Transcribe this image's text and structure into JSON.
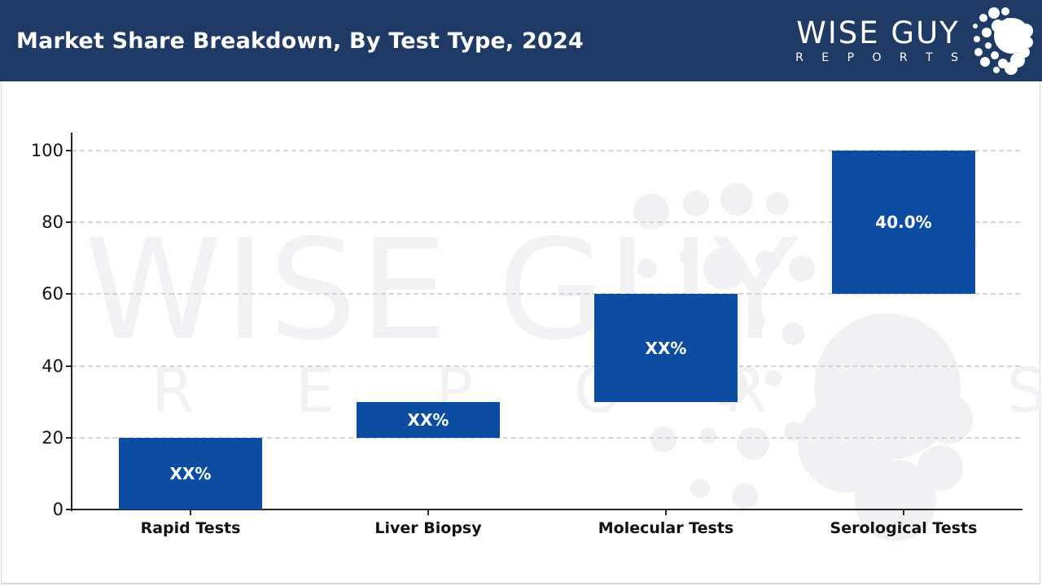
{
  "header": {
    "title": "Market Share Breakdown, By Test Type, 2024",
    "bg_color": "#203A66",
    "logo": {
      "line1": "WISE GUY",
      "line2": "R E P O R T S"
    }
  },
  "watermark": {
    "line1": "WISE GUY",
    "line2": "R E P O R T S"
  },
  "chart_data": {
    "type": "bar",
    "subtype": "waterfall",
    "title": "Market Share Breakdown, By Test Type, 2024",
    "categories": [
      "Rapid Tests",
      "Liver Biopsy",
      "Molecular Tests",
      "Serological Tests"
    ],
    "segments": [
      {
        "category": "Rapid Tests",
        "start": 0,
        "end": 20,
        "label": "XX%"
      },
      {
        "category": "Liver Biopsy",
        "start": 20,
        "end": 30,
        "label": "XX%"
      },
      {
        "category": "Molecular Tests",
        "start": 30,
        "end": 60,
        "label": "XX%"
      },
      {
        "category": "Serological Tests",
        "start": 60,
        "end": 100,
        "label": "40.0%"
      }
    ],
    "yticks": [
      0,
      20,
      40,
      60,
      80,
      100
    ],
    "ylim": [
      0,
      105
    ],
    "xlabel": "",
    "ylabel": "",
    "grid": "horizontal-dashed",
    "legend": "none",
    "bar_color": "#0D4DA1",
    "bar_label_color": "#FFFFFF",
    "axis_color": "#262626",
    "gridline_color": "#D4D4D4"
  }
}
